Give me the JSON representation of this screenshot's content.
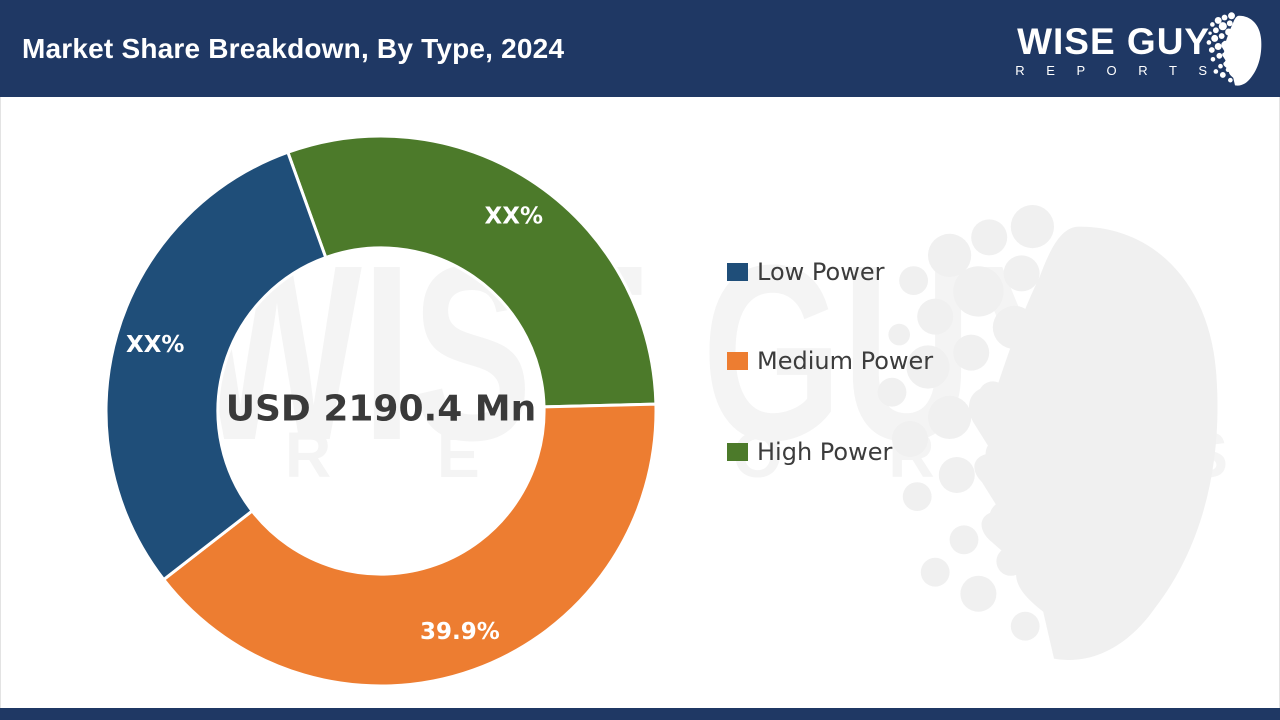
{
  "header": {
    "title": "Market Share Breakdown, By Type, 2024",
    "logo": {
      "line1": "WISE GUY",
      "line2": "R E P O R T S"
    }
  },
  "watermark": {
    "line1": "WISE GUY",
    "line2": "R E P O R T S"
  },
  "chart_data": {
    "type": "pie",
    "subtype": "donut",
    "title": "",
    "center_label": "USD 2190.4 Mn",
    "start_angle_deg_clockwise_from_top": -19.8,
    "inner_radius_ratio": 0.593,
    "label_radius_ratio": 0.855,
    "segments": [
      {
        "name": "High Power",
        "pct": 30.1,
        "label": "XX%",
        "color": "#4C7A2A"
      },
      {
        "name": "Medium Power",
        "pct": 39.9,
        "label": "39.9%",
        "color": "#ED7D31"
      },
      {
        "name": "Low Power",
        "pct": 30.0,
        "label": "XX%",
        "color": "#1F4E79"
      }
    ],
    "legend": {
      "position": "right",
      "items": [
        {
          "name": "Low Power",
          "color": "#1F4E79"
        },
        {
          "name": "Medium Power",
          "color": "#ED7D31"
        },
        {
          "name": "High Power",
          "color": "#4C7A2A"
        }
      ]
    }
  },
  "colors": {
    "header_bg": "#1F3864",
    "footer_bg": "#1F3864",
    "slice_separator": "#FFFFFF",
    "center_text": "#3A3A3A",
    "legend_text": "#3C3C3C",
    "watermark": "#F4F4F4"
  }
}
